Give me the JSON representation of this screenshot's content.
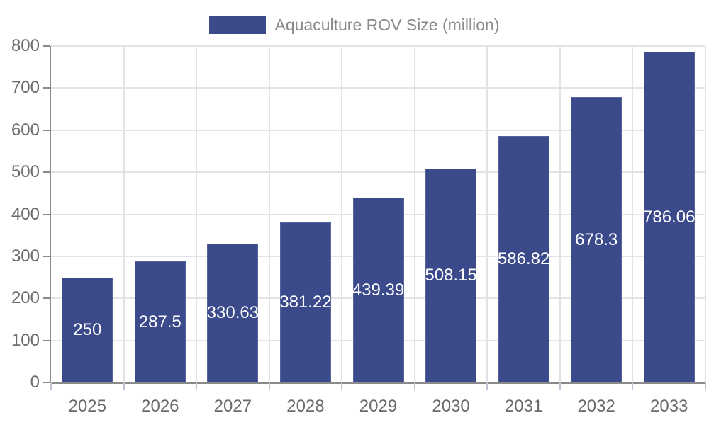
{
  "legend": {
    "label": "Aquaculture ROV Size (million)"
  },
  "colors": {
    "bar": "#3b4a8a",
    "bar_edge": "#56639a",
    "grid": "#e3e3e7",
    "axis": "#8a8a8a",
    "tick_text": "#6b6b6b",
    "legend_text": "#8a8a8a",
    "value_text": "#ffffff"
  },
  "chart_data": {
    "type": "bar",
    "title": "Aquaculture ROV Size (million)",
    "categories": [
      "2025",
      "2026",
      "2027",
      "2028",
      "2029",
      "2030",
      "2031",
      "2032",
      "2033"
    ],
    "values": [
      250,
      287.5,
      330.63,
      381.22,
      439.39,
      508.15,
      586.82,
      678.3,
      786.06
    ],
    "value_labels": [
      "250",
      "287.5",
      "330.63",
      "381.22",
      "439.39",
      "508.15",
      "586.82",
      "678.3",
      "786.06"
    ],
    "xlabel": "",
    "ylabel": "",
    "ylim": [
      0,
      800
    ],
    "yticks": [
      0,
      100,
      200,
      300,
      400,
      500,
      600,
      700,
      800
    ],
    "grid": true,
    "legend_position": "top"
  }
}
